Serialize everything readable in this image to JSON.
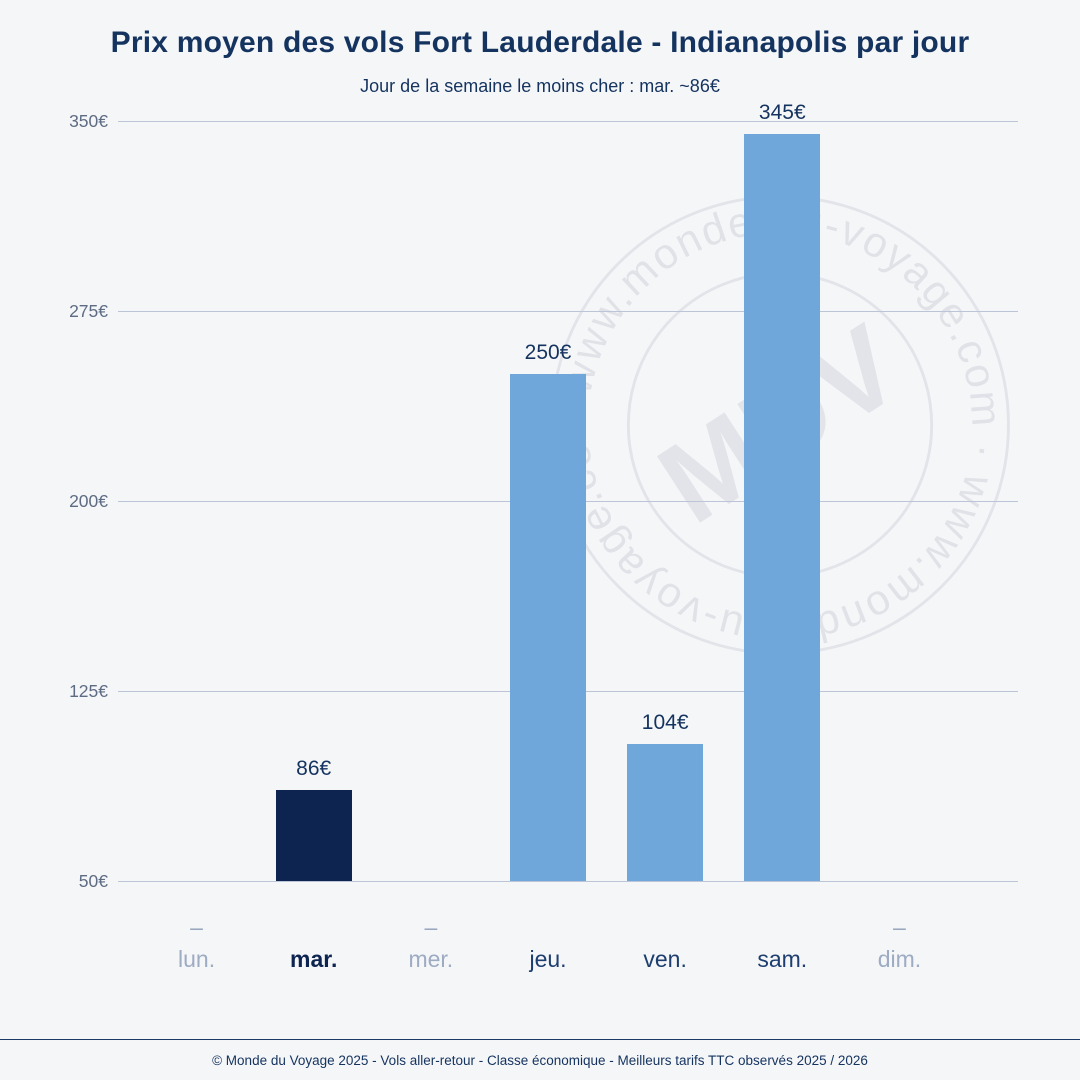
{
  "chart_data": {
    "type": "bar",
    "title": "Prix moyen des vols Fort Lauderdale - Indianapolis par jour",
    "subtitle": "Jour de la semaine le moins cher : mar. ~86€",
    "categories": [
      "lun.",
      "mar.",
      "mer.",
      "jeu.",
      "ven.",
      "sam.",
      "dim."
    ],
    "values": [
      null,
      86,
      null,
      250,
      104,
      345,
      null
    ],
    "value_labels": [
      "",
      "86€",
      "",
      "250€",
      "104€",
      "345€",
      ""
    ],
    "no_data_marker": "–",
    "ylim": [
      50,
      350
    ],
    "yticks": [
      350,
      275,
      200,
      125,
      50
    ],
    "ytick_labels": [
      "350€",
      "275€",
      "200€",
      "125€",
      "50€"
    ],
    "highlight_index": 1,
    "grid": true,
    "legend": "none",
    "colors": {
      "background": "#f5f6f8",
      "bar": "#6fa7da",
      "bar_highlight": "#0d2350",
      "title_text": "#14335f",
      "grid": "#bcc5d8",
      "muted_label": "#9dabc3"
    }
  },
  "watermark": {
    "circle_text": "www.monde-du-voyage.com",
    "center_text": "MDV"
  },
  "footer": {
    "text": "© Monde du Voyage 2025 - Vols aller-retour - Classe économique - Meilleurs tarifs TTC observés 2025 / 2026"
  }
}
